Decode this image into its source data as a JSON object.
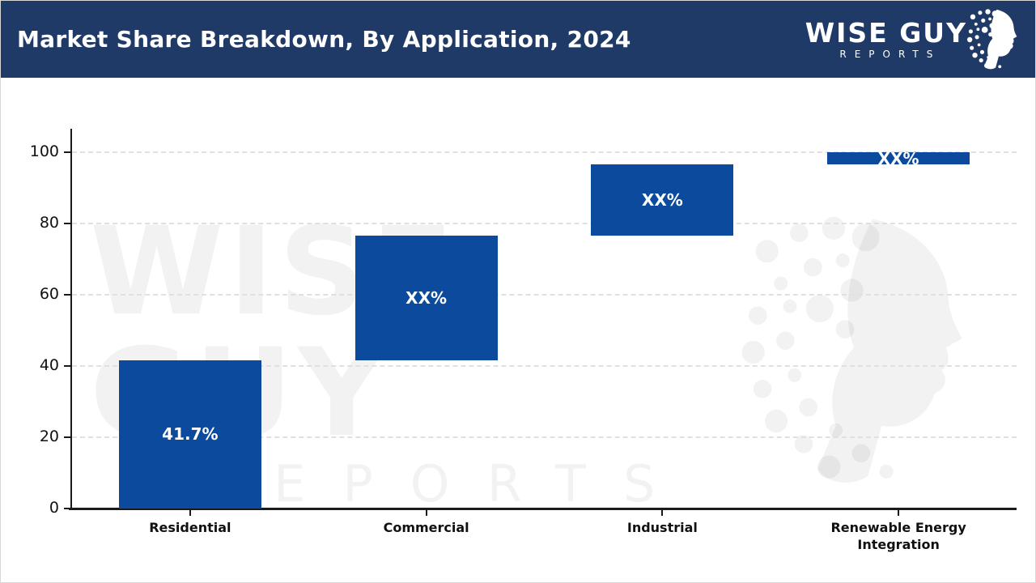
{
  "header": {
    "title": "Market Share Breakdown, By Application, 2024",
    "logo": {
      "line1": "WISE GUY",
      "line2": "REPORTS"
    }
  },
  "watermark": {
    "line1": "WISE GUY",
    "line2": "REPORTS"
  },
  "colors": {
    "header_bg": "#1f3a67",
    "bar": "#0c4a9d",
    "grid": "#e0e0e0",
    "axis": "#1a1a1a",
    "bar_label": "#ffffff"
  },
  "chart_data": {
    "type": "bar",
    "variant": "waterfall-stacked",
    "title": "Market Share Breakdown, By Application, 2024",
    "categories": [
      "Residential",
      "Commercial",
      "Industrial",
      "Renewable Energy Integration"
    ],
    "segments": [
      {
        "category": "Residential",
        "start": 0,
        "end": 41.7,
        "value_est": 41.7,
        "label": "41.7%"
      },
      {
        "category": "Commercial",
        "start": 41.7,
        "end": 76.7,
        "value_est": 35.0,
        "label": "XX%"
      },
      {
        "category": "Industrial",
        "start": 76.7,
        "end": 96.7,
        "value_est": 20.0,
        "label": "XX%"
      },
      {
        "category": "Renewable Energy Integration",
        "start": 96.7,
        "end": 100,
        "value_est": 3.3,
        "label": "XX%"
      }
    ],
    "y_ticks": [
      0,
      20,
      40,
      60,
      80,
      100
    ],
    "ylim": [
      0,
      105
    ],
    "xlabel": "",
    "ylabel": "",
    "grid": "dashed-horizontal",
    "legend": "none"
  }
}
